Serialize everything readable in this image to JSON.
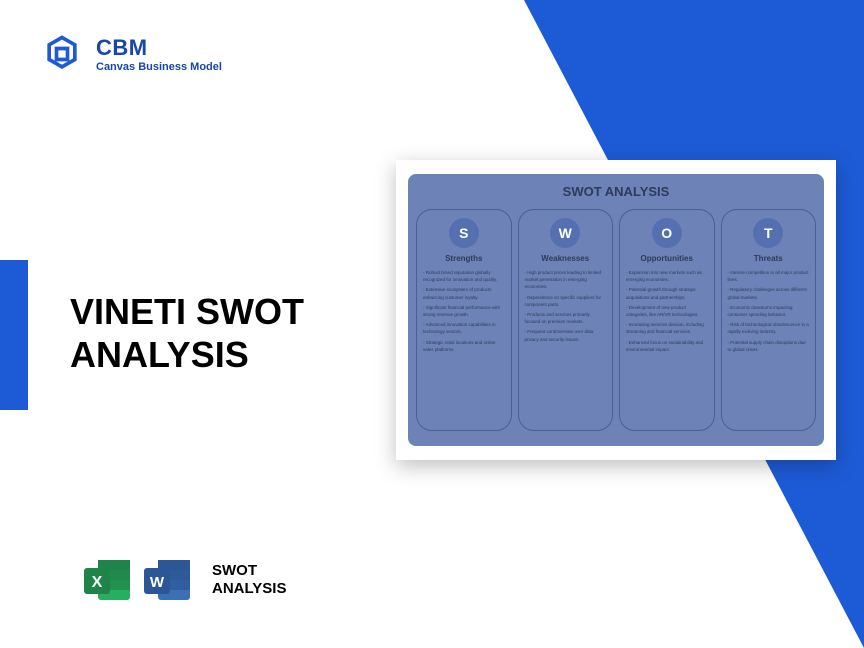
{
  "colors": {
    "primary": "#1d5bd6",
    "primaryDark": "#1747a8",
    "swotBg": "#6d82b6",
    "swotBorder": "#4a5f93",
    "swotText": "#2d3a5a",
    "swotCircle": "#5470b0",
    "excelGreen": "#1e8449",
    "excelLight": "#27ae60",
    "wordBlue": "#2b5797",
    "wordLight": "#3d6fb5"
  },
  "logo": {
    "title": "CBM",
    "subtitle": "Canvas Business Model"
  },
  "mainTitle": {
    "line1": "VINETI SWOT",
    "line2": "ANALYSIS"
  },
  "swot": {
    "title": "SWOT ANALYSIS",
    "columns": [
      {
        "letter": "S",
        "name": "Strengths",
        "items": [
          "- Robust brand reputation globally recognized for innovation and quality.",
          "- Extensive ecosystem of products enhancing customer loyalty.",
          "- Significant financial performance with strong revenue growth.",
          "- Advanced innovation capabilities in technology sectors.",
          "- Strategic retail locations and online sales platforms."
        ]
      },
      {
        "letter": "W",
        "name": "Weaknesses",
        "items": [
          "- High product prices leading to limited market penetration in emerging economies.",
          "- Dependence on specific suppliers for component parts.",
          "- Products and services primarily focused on premium markets.",
          "- Frequent controversies over data privacy and security issues."
        ]
      },
      {
        "letter": "O",
        "name": "Opportunities",
        "items": [
          "- Expansion into new markets such as emerging economies.",
          "- Potential growth through strategic acquisitions and partnerships.",
          "- Development of new product categories, like AR/VR technologies.",
          "- Increasing services division, including streaming and financial services.",
          "- Enhanced focus on sustainability and environmental impact."
        ]
      },
      {
        "letter": "T",
        "name": "Threats",
        "items": [
          "- Intense competition in all major product lines.",
          "- Regulatory challenges across different global markets.",
          "- Economic downturns impacting consumer spending behavior.",
          "- Risk of technological obsolescence in a rapidly evolving industry.",
          "- Potential supply chain disruptions due to global crises."
        ]
      }
    ]
  },
  "footer": {
    "line1": "SWOT",
    "line2": "ANALYSIS"
  }
}
